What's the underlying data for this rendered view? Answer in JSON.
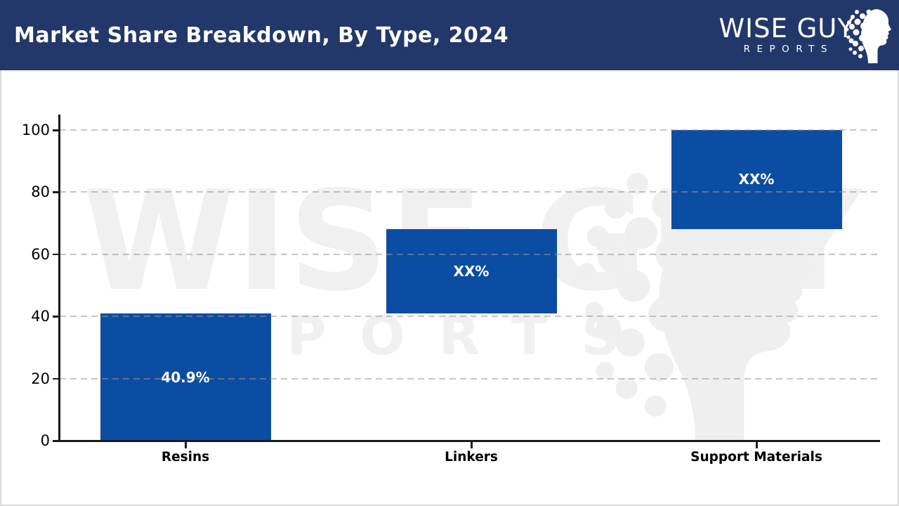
{
  "header": {
    "title": "Market Share Breakdown, By Type, 2024",
    "logo": {
      "wordmark": "WISE GUY",
      "subtext": "REPORTS"
    }
  },
  "watermark": {
    "wordmark": "WISE GUY",
    "subtext": "REPORTS"
  },
  "colors": {
    "header_bg": "#22386a",
    "bar": "#0b4da2",
    "bar_label": "#ffffff",
    "axis": "#1a1a1a",
    "gridline": "#969696",
    "watermark": "#f0f0f0"
  },
  "chart_data": {
    "type": "bar",
    "variant": "waterfall",
    "title": "Market Share Breakdown, By Type, 2024",
    "categories": [
      "Resins",
      "Linkers",
      "Support Materials"
    ],
    "segments": [
      {
        "category": "Resins",
        "label": "40.9%",
        "start": 0,
        "end": 40.9
      },
      {
        "category": "Linkers",
        "label": "XX%",
        "start": 40.9,
        "end": 68.2
      },
      {
        "category": "Support Materials",
        "label": "XX%",
        "start": 68.2,
        "end": 100
      }
    ],
    "xlabel": "",
    "ylabel": "",
    "ylim": [
      0,
      100
    ],
    "yticks": [
      0,
      20,
      40,
      60,
      80,
      100
    ],
    "grid": {
      "horizontal": true,
      "style": "dashed",
      "above_bars": true
    },
    "legend": "none"
  }
}
